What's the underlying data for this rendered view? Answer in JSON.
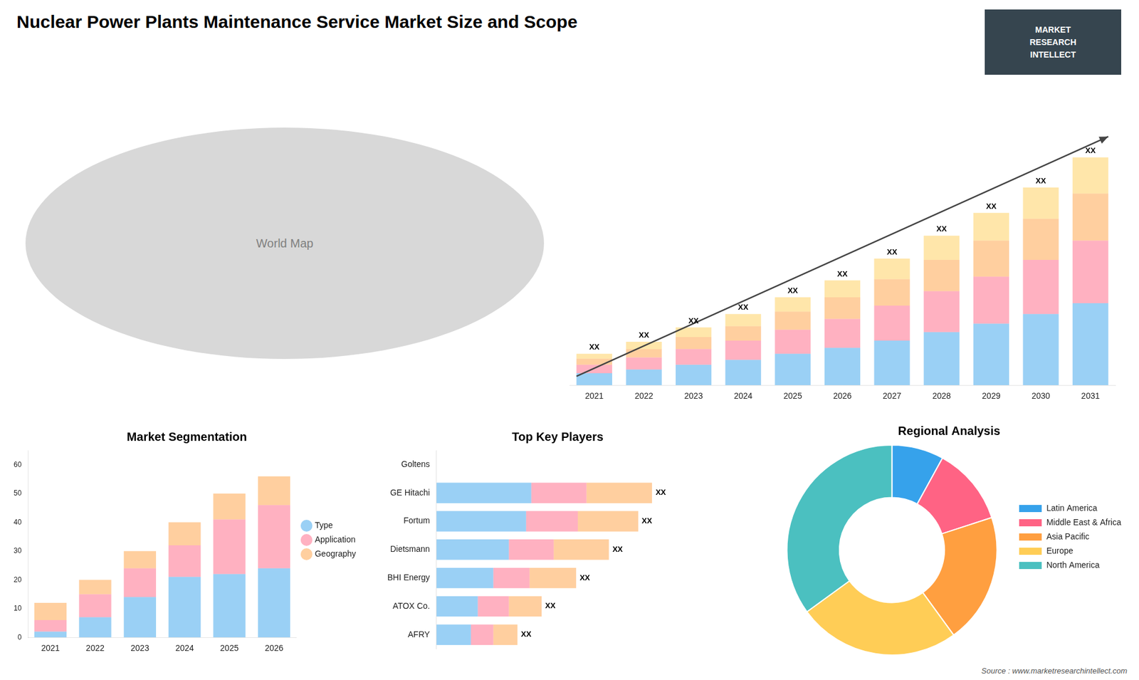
{
  "chart_data": [
    {
      "type": "bar",
      "title": "Nuclear Power Plants Maintenance Service Market Size and Scope",
      "categories": [
        "2021",
        "2022",
        "2023",
        "2024",
        "2025",
        "2026",
        "2027",
        "2028",
        "2029",
        "2030",
        "2031"
      ],
      "series": [
        {
          "values": [
            1.0,
            1.3,
            1.7,
            2.1,
            2.6,
            3.1,
            3.7,
            4.4,
            5.1,
            5.9,
            6.8
          ]
        },
        {
          "values": [
            0.7,
            1.0,
            1.3,
            1.6,
            2.0,
            2.4,
            2.9,
            3.4,
            3.9,
            4.5,
            5.2
          ]
        },
        {
          "values": [
            0.5,
            0.7,
            1.0,
            1.2,
            1.5,
            1.8,
            2.2,
            2.6,
            3.0,
            3.4,
            3.9
          ]
        },
        {
          "values": [
            0.4,
            0.6,
            0.8,
            1.0,
            1.2,
            1.4,
            1.7,
            2.0,
            2.3,
            2.6,
            3.0
          ],
          "value_labels": [
            "XX",
            "XX",
            "XX",
            "XX",
            "XX",
            "XX",
            "XX",
            "XX",
            "XX",
            "XX",
            "XX"
          ]
        }
      ],
      "stacked": true,
      "ylim": [
        0,
        24.57
      ],
      "tick_labels": "x",
      "grid": false,
      "annotations": [
        "MARKET",
        "RESEARCH",
        "INTELLECT",
        "World Map",
        "Source : www.marketresearchintellect.com"
      ]
    },
    {
      "type": "bar",
      "title": "Market Segmentation",
      "categories": [
        "2021",
        "2022",
        "2023",
        "2024",
        "2025",
        "2026"
      ],
      "series": [
        {
          "name": "Type",
          "values": [
            2,
            7,
            14,
            21,
            22,
            24
          ]
        },
        {
          "name": "Application",
          "values": [
            4,
            8,
            10,
            11,
            19,
            22
          ]
        },
        {
          "name": "Geography",
          "values": [
            6,
            5,
            6,
            8,
            9,
            10
          ]
        }
      ],
      "stacked": true,
      "ylim": [
        0,
        65
      ],
      "yticks": [
        0,
        10,
        20,
        30,
        40,
        50,
        60
      ],
      "grid": false,
      "legend": "right"
    },
    {
      "type": "bar",
      "title": "Top Key Players",
      "orientation": "horizontal",
      "categories": [
        "Goltens",
        "GE Hitachi",
        "Fortum",
        "Dietsmann",
        "BHI Energy",
        "ATOX Co.",
        "AFRY"
      ],
      "series": [
        {
          "values": [
            0,
            5.5,
            5.2,
            4.2,
            3.3,
            2.4,
            2.0
          ]
        },
        {
          "values": [
            0,
            3.2,
            3.0,
            2.6,
            2.1,
            1.8,
            1.3
          ]
        },
        {
          "values": [
            0,
            3.8,
            3.5,
            3.2,
            2.7,
            1.9,
            1.4
          ],
          "value_labels": [
            null,
            "XX",
            "XX",
            "XX",
            "XX",
            "XX",
            "XX"
          ]
        }
      ],
      "stacked": true,
      "xlim": [
        0,
        17
      ],
      "tick_labels": "y",
      "grid": false
    },
    {
      "type": "doughnut",
      "title": "Regional Analysis",
      "categories": [
        "Latin America",
        "Middle East &\nAfrica",
        "Asia Pacific",
        "Europe",
        "North America"
      ],
      "values": [
        8,
        12,
        20,
        25,
        35
      ],
      "legend": "right"
    }
  ]
}
